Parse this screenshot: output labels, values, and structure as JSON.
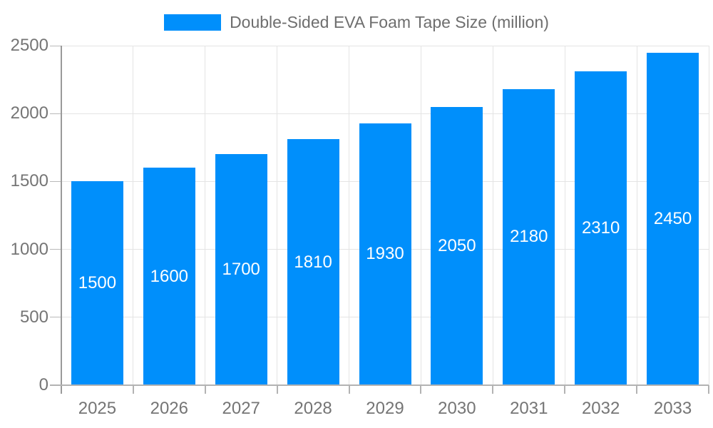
{
  "chart_data": {
    "type": "bar",
    "title": "Double-Sided EVA Foam Tape Size (million)",
    "categories": [
      "2025",
      "2026",
      "2027",
      "2028",
      "2029",
      "2030",
      "2031",
      "2032",
      "2033"
    ],
    "values": [
      1500,
      1600,
      1700,
      1810,
      1930,
      2050,
      2180,
      2310,
      2450
    ],
    "bar_value_labels": [
      "1500",
      "1600",
      "1700",
      "1810",
      "1930",
      "2050",
      "2180",
      "2310",
      "2450"
    ],
    "xlabel": "",
    "ylabel": "",
    "ylim": [
      0,
      2500
    ],
    "yticks": [
      0,
      500,
      1000,
      1500,
      2000,
      2500
    ],
    "grid": true,
    "legend_position": "top",
    "colors": {
      "bar": "#008FFB",
      "bar_label_text": "#ffffff",
      "axis_text": "#757575",
      "legend_text": "#6e6e6e",
      "gridline": "#e4e4e4",
      "x_axis_line": "#b3b3b3",
      "y_axis_line": "#9a9a9a",
      "tick_mark": "#b9b9b9"
    }
  }
}
